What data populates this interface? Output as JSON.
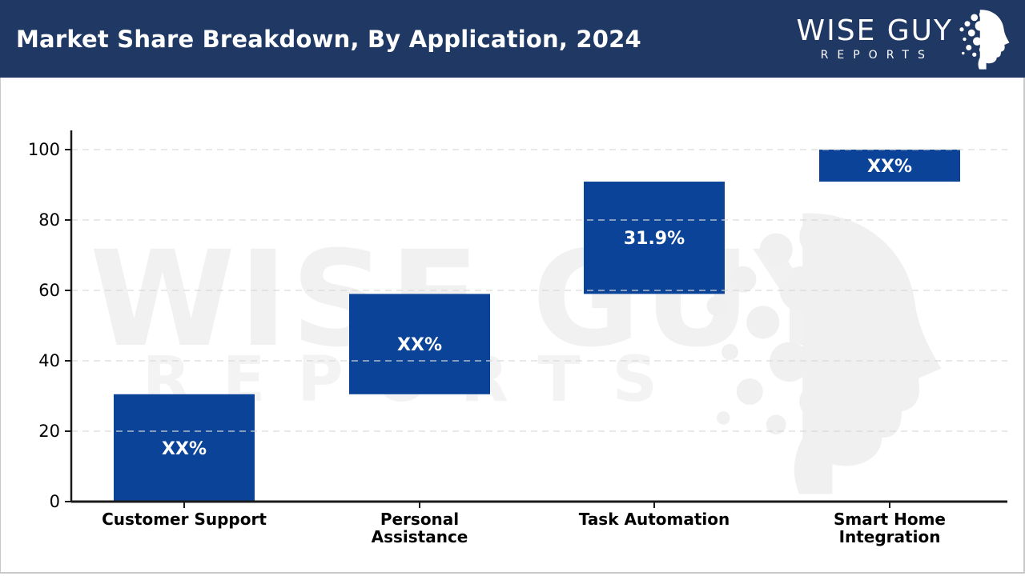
{
  "header": {
    "title": "Market Share Breakdown, By Application, 2024",
    "logo": {
      "line1": "WISE GUY",
      "line2": "REPORTS"
    }
  },
  "watermark": {
    "line1": "WISE GUY",
    "line2": "REPORTS"
  },
  "colors": {
    "header_bg": "#1f3864",
    "bar": "#0a4397",
    "bar_label": "#ffffff",
    "grid": "#d9d9d9",
    "axis": "#1a1a1a",
    "tick_label": "#000000",
    "watermark": "#f1f1f1"
  },
  "chart_data": {
    "type": "bar",
    "variant": "waterfall",
    "title": "Market Share Breakdown, By Application, 2024",
    "categories": [
      "Customer Support",
      "Personal\nAssistance",
      "Task Automation",
      "Smart Home\nIntegration"
    ],
    "segments": [
      {
        "category": "Customer Support",
        "start": 0,
        "end": 30.5,
        "label": "XX%"
      },
      {
        "category": "Personal Assistance",
        "start": 30.5,
        "end": 59.0,
        "label": "XX%"
      },
      {
        "category": "Task Automation",
        "start": 59.0,
        "end": 90.9,
        "label": "31.9%"
      },
      {
        "category": "Smart Home Integration",
        "start": 90.9,
        "end": 100,
        "label": "XX%"
      }
    ],
    "yticks": [
      0,
      20,
      40,
      60,
      80,
      100
    ],
    "ylim": [
      0,
      105.5
    ],
    "xlabel": "",
    "ylabel": "",
    "grid": "horizontal-dashed",
    "legend": "none"
  }
}
